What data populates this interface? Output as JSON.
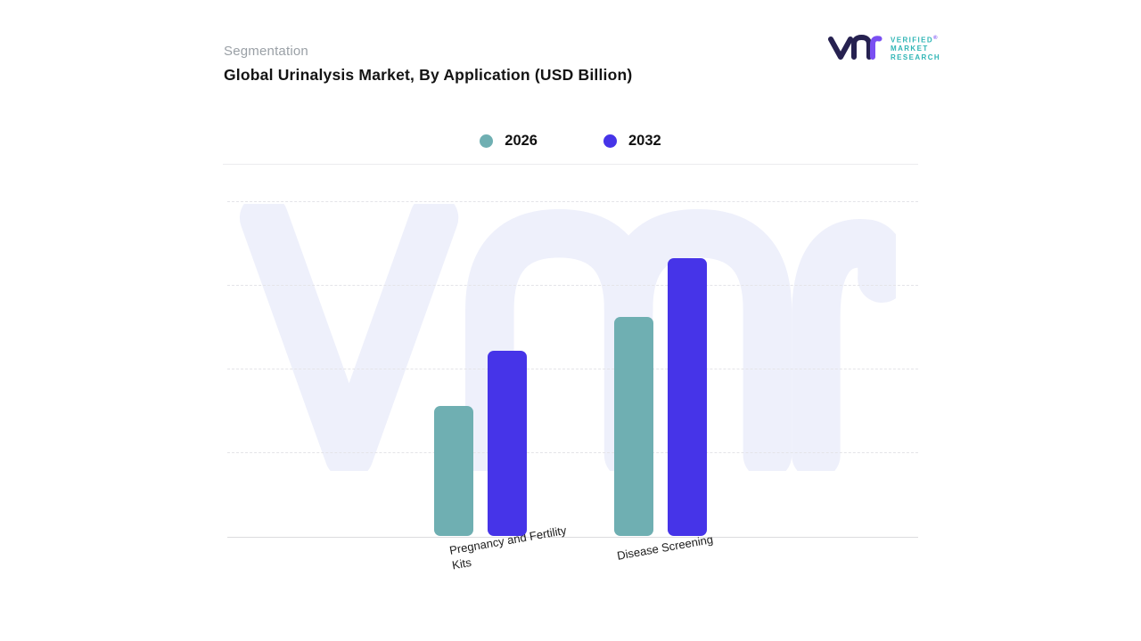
{
  "header": {
    "eyebrow": "Segmentation",
    "title": "Global Urinalysis Market, By Application (USD Billion)"
  },
  "logo": {
    "brand_lines": [
      "VERIFIED",
      "MARKET",
      "RESEARCH"
    ],
    "registered_mark": "®",
    "mark_color_primary": "#262150",
    "mark_color_accent": "#7a4ff2",
    "text_color": "#2fb5b5"
  },
  "legend": [
    {
      "label": "2026",
      "color": "#6fafb2"
    },
    {
      "label": "2032",
      "color": "#4634e8"
    }
  ],
  "chart_data": {
    "type": "bar",
    "title": "Global Urinalysis Market, By Application (USD Billion)",
    "categories": [
      "Pregnancy and Fertility Kits",
      "Disease Screening"
    ],
    "series": [
      {
        "name": "2026",
        "color": "#6fafb2",
        "values": [
          1.55,
          2.6
        ]
      },
      {
        "name": "2032",
        "color": "#4634e8",
        "values": [
          2.2,
          3.3
        ]
      }
    ],
    "ylim": [
      0,
      4
    ],
    "gridlines": "dashed horizontal at 1, 2, 3, 4",
    "y_axis_labels_visible": false,
    "legend_position": "top-center",
    "watermark": "VMr monogram"
  }
}
